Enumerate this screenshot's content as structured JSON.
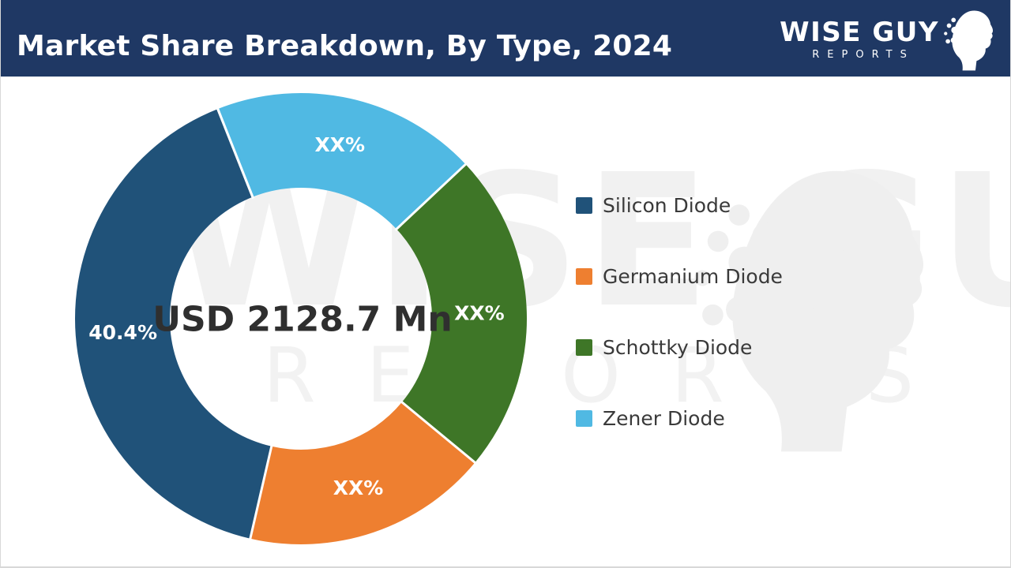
{
  "header": {
    "title": "Market Share Breakdown, By Type, 2024"
  },
  "logo": {
    "name": "WISE GUY",
    "sub": "REPORTS"
  },
  "watermark": {
    "name": "WISE GUY",
    "sub": "REPORTS"
  },
  "chart_data": {
    "type": "pie",
    "subtype": "donut",
    "title": "Market Share Breakdown, By Type, 2024",
    "center_label": "USD 2128.7 Mn",
    "categories": [
      "Silicon Diode",
      "Germanium Diode",
      "Schottky Diode",
      "Zener Diode"
    ],
    "values": [
      40.4,
      17.6,
      23.0,
      19.0
    ],
    "slice_labels": [
      "40.4%",
      "XX%",
      "XX%",
      "XX%"
    ],
    "colors": [
      "#205279",
      "#EE7F30",
      "#3E7627",
      "#50B9E3"
    ],
    "start_angle_deg": 111.6,
    "direction": "counterclockwise",
    "donut_hole_ratio": 0.58,
    "legend_position": "right",
    "slice_label_color": "#FFFFFF"
  },
  "legend": {
    "items": [
      {
        "label": "Silicon Diode",
        "color": "#205279"
      },
      {
        "label": "Germanium Diode",
        "color": "#EE7F30"
      },
      {
        "label": "Schottky Diode",
        "color": "#3E7627"
      },
      {
        "label": "Zener Diode",
        "color": "#50B9E3"
      }
    ]
  },
  "colors": {
    "header_bg": "#1F3864",
    "page_border": "#D8D8D8",
    "center_text": "#2F2F2F",
    "legend_text": "#3A3A3A",
    "watermark": "#F1F1F1"
  }
}
